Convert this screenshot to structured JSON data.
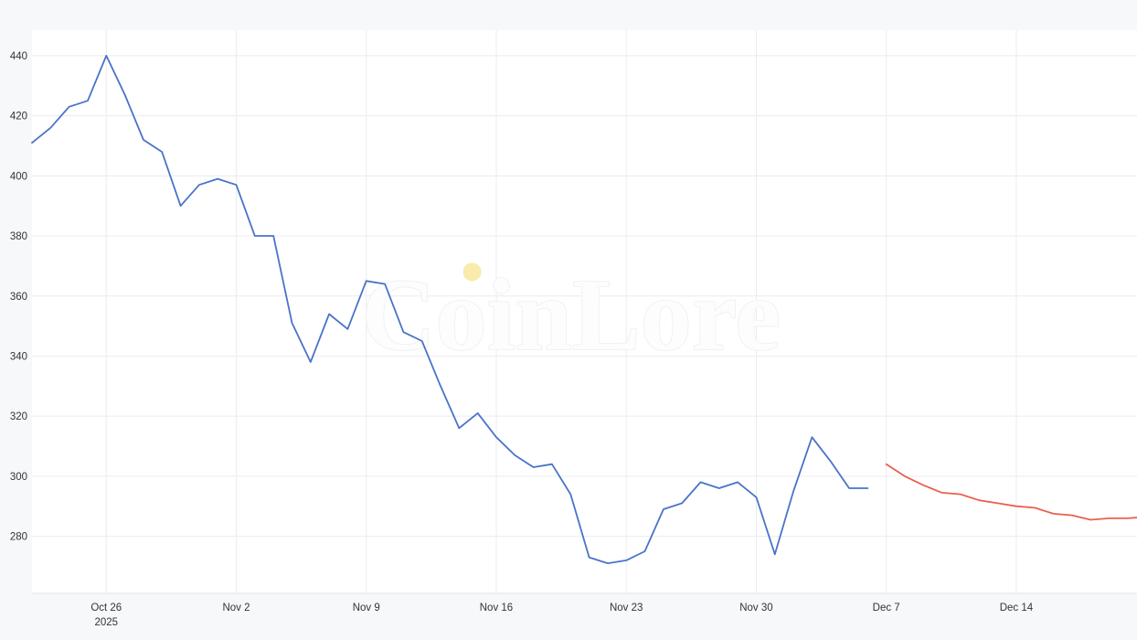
{
  "page": {
    "background": "#f7f8fa",
    "plot_background": "#ffffff",
    "gridline_color": "#ececec",
    "axis_edge_color": "#e5e5e5"
  },
  "chart_data": {
    "type": "line",
    "title": "",
    "watermark": "CoinLore",
    "grid": true,
    "legend": "none",
    "x_axis": {
      "i_range": [
        0,
        59.5
      ],
      "ticks": [
        {
          "i": 4,
          "label": "Oct 26",
          "sublabel": "2025"
        },
        {
          "i": 11,
          "label": "Nov 2"
        },
        {
          "i": 18,
          "label": "Nov 9"
        },
        {
          "i": 25,
          "label": "Nov 16"
        },
        {
          "i": 32,
          "label": "Nov 23"
        },
        {
          "i": 39,
          "label": "Nov 30"
        },
        {
          "i": 46,
          "label": "Dec 7"
        },
        {
          "i": 53,
          "label": "Dec 14"
        }
      ]
    },
    "y_axis": {
      "range": [
        261,
        448.5
      ],
      "ticks": [
        280,
        300,
        320,
        340,
        360,
        380,
        400,
        420,
        440
      ]
    },
    "series": [
      {
        "name": "price-history",
        "color": "#4a73c9",
        "points": [
          [
            0,
            411
          ],
          [
            1,
            416
          ],
          [
            2,
            423
          ],
          [
            3,
            425
          ],
          [
            4,
            440
          ],
          [
            5,
            427
          ],
          [
            6,
            412
          ],
          [
            7,
            408
          ],
          [
            8,
            390
          ],
          [
            9,
            397
          ],
          [
            10,
            399
          ],
          [
            11,
            397
          ],
          [
            12,
            380
          ],
          [
            13,
            380
          ],
          [
            14,
            351
          ],
          [
            15,
            338
          ],
          [
            16,
            354
          ],
          [
            17,
            349
          ],
          [
            18,
            365
          ],
          [
            19,
            364
          ],
          [
            20,
            348
          ],
          [
            21,
            345
          ],
          [
            22,
            330
          ],
          [
            23,
            316
          ],
          [
            24,
            321
          ],
          [
            25,
            313
          ],
          [
            26,
            307
          ],
          [
            27,
            303
          ],
          [
            28,
            304
          ],
          [
            29,
            294
          ],
          [
            30,
            273
          ],
          [
            31,
            271
          ],
          [
            32,
            272
          ],
          [
            33,
            275
          ],
          [
            34,
            289
          ],
          [
            35,
            291
          ],
          [
            36,
            298
          ],
          [
            37,
            296
          ],
          [
            38,
            298
          ],
          [
            39,
            293
          ],
          [
            40,
            274
          ],
          [
            41,
            295
          ],
          [
            42,
            313
          ],
          [
            43,
            305
          ],
          [
            44,
            296
          ],
          [
            45,
            296
          ]
        ]
      },
      {
        "name": "price-forecast",
        "color": "#e8614d",
        "points": [
          [
            46,
            304
          ],
          [
            47,
            300
          ],
          [
            48,
            297
          ],
          [
            49,
            294.5
          ],
          [
            50,
            294
          ],
          [
            51,
            292
          ],
          [
            52,
            291
          ],
          [
            53,
            290
          ],
          [
            54,
            289.5
          ],
          [
            55,
            287.5
          ],
          [
            56,
            287
          ],
          [
            57,
            285.5
          ],
          [
            58,
            286
          ],
          [
            59,
            286
          ],
          [
            60,
            286.5
          ]
        ]
      }
    ],
    "marker": {
      "i": 23.7,
      "v": 368,
      "color": "#f7e9a3",
      "radius": 10
    }
  }
}
